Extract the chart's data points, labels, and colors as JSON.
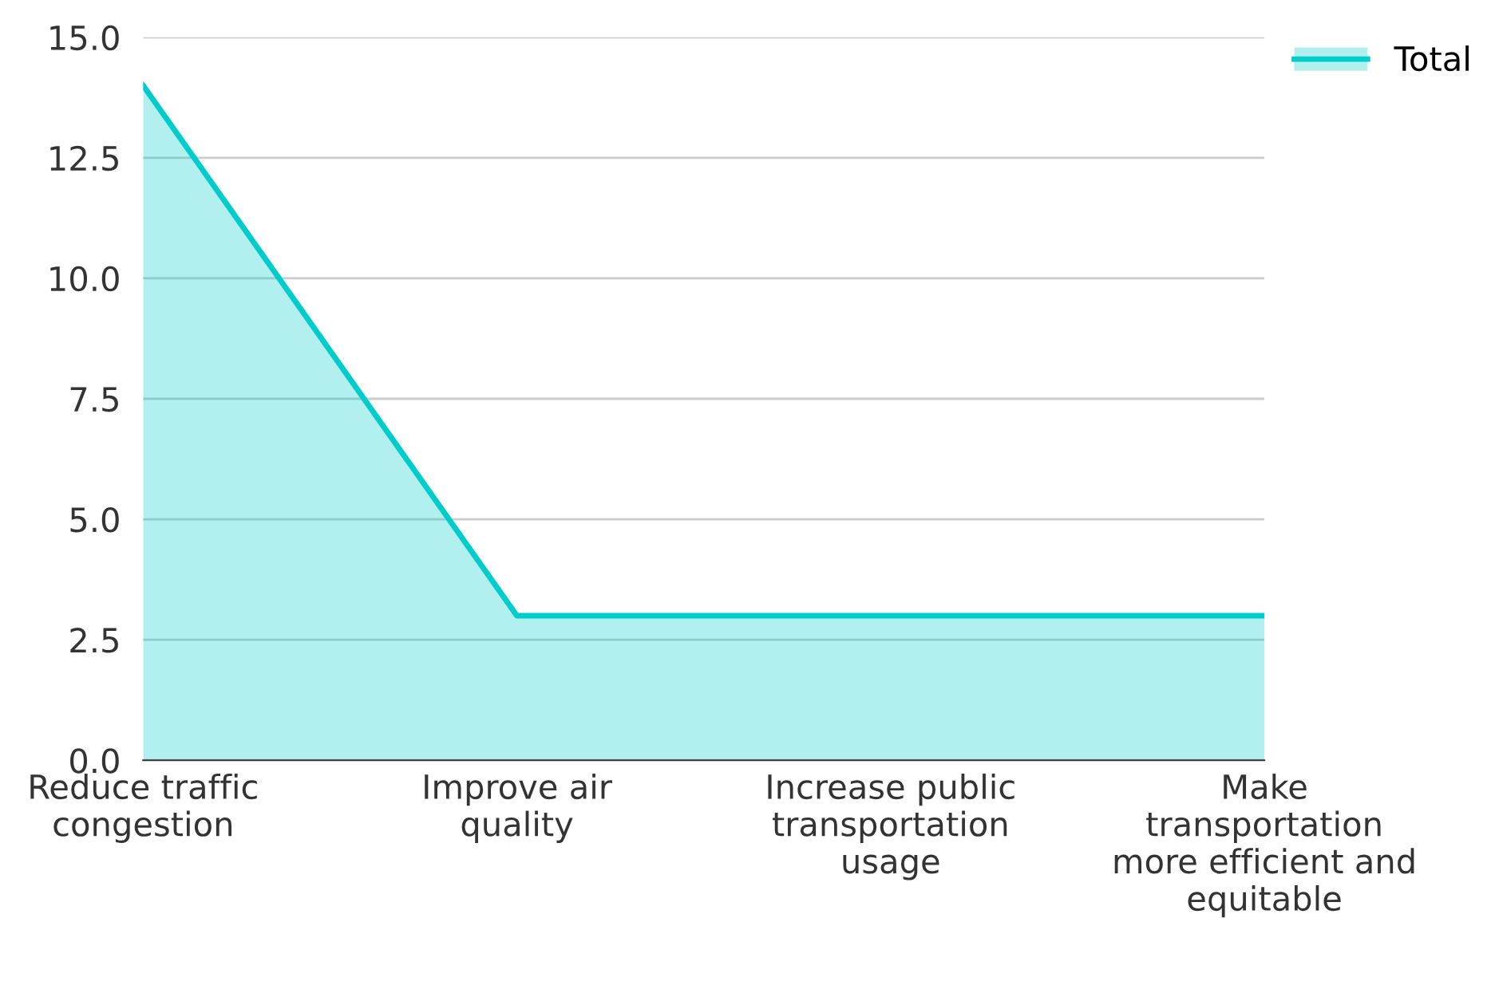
{
  "chart_data": {
    "type": "area",
    "categories": [
      "Reduce traffic\ncongestion",
      "Improve air\nquality",
      "Increase public\ntransportation\nusage",
      "Make\ntransportation\nmore efficient and\nequitable"
    ],
    "series": [
      {
        "name": "Total",
        "color": "#00cccc",
        "values": [
          14,
          3,
          3,
          3
        ]
      }
    ],
    "ylim": [
      0,
      15
    ],
    "yticks": [
      {
        "value": 0,
        "label": "0.0"
      },
      {
        "value": 2.5,
        "label": "2.5"
      },
      {
        "value": 5,
        "label": "5.0"
      },
      {
        "value": 7.5,
        "label": "7.5"
      },
      {
        "value": 10,
        "label": "10.0"
      },
      {
        "value": 12.5,
        "label": "12.5"
      },
      {
        "value": 15,
        "label": "15.0"
      }
    ],
    "grid": "y",
    "legend": "top right"
  }
}
